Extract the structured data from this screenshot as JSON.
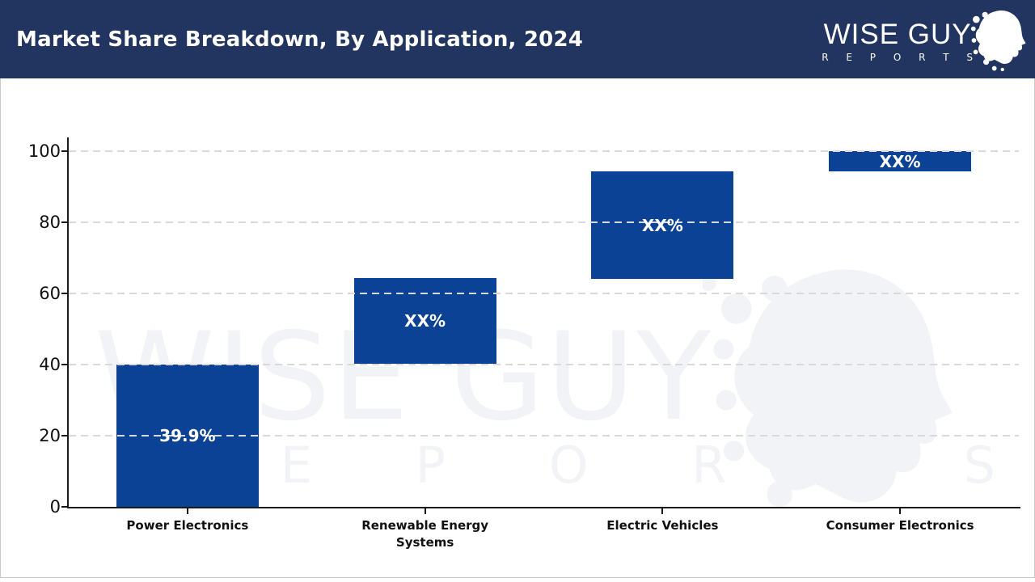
{
  "header": {
    "title": "Market Share Breakdown, By Application, 2024",
    "logo": {
      "line1": "WISE GUY",
      "line2": "R E P O R T S"
    }
  },
  "watermark": {
    "line1": "WISE GUY",
    "line2": "R E P O R T S"
  },
  "chart_data": {
    "type": "bar",
    "subtype": "waterfall",
    "title": "Market Share Breakdown, By Application, 2024",
    "categories": [
      "Power Electronics",
      "Renewable Energy Systems",
      "Electric Vehicles",
      "Consumer Electronics"
    ],
    "segments": [
      {
        "category": "Power Electronics",
        "label": "39.9%",
        "start": 0,
        "end": 39.9
      },
      {
        "category": "Renewable Energy Systems",
        "label": "XX%",
        "start": 40.2,
        "end": 64.3
      },
      {
        "category": "Electric Vehicles",
        "label": "XX%",
        "start": 64.1,
        "end": 94.3
      },
      {
        "category": "Consumer Electronics",
        "label": "XX%",
        "start": 94.3,
        "end": 100
      }
    ],
    "xlabel": "",
    "ylabel": "",
    "ylim": [
      0,
      100
    ],
    "yticks": [
      0,
      20,
      40,
      60,
      80,
      100
    ],
    "grid": "horizontal-dashed",
    "legend": "none",
    "colors": {
      "bar": "#0b4295",
      "header_bg": "#213560",
      "grid_line": "#d9d9d9",
      "axis": "#1a1a1a",
      "bar_label": "#ffffff",
      "watermark": "#f2f3f6",
      "card_border": "#c9c9c9"
    }
  }
}
